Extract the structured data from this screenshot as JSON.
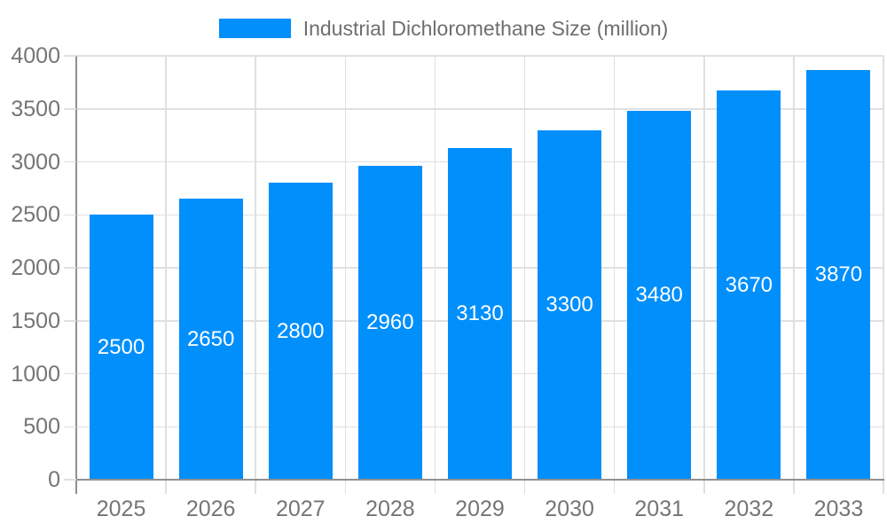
{
  "legend": {
    "label": "Industrial Dichloromethane Size (million)"
  },
  "chart_data": {
    "type": "bar",
    "title": "",
    "series_name": "Industrial Dichloromethane Size (million)",
    "categories": [
      "2025",
      "2026",
      "2027",
      "2028",
      "2029",
      "2030",
      "2031",
      "2032",
      "2033"
    ],
    "values": [
      2500,
      2650,
      2800,
      2960,
      3130,
      3300,
      3480,
      3670,
      3870
    ],
    "xlabel": "",
    "ylabel": "",
    "ylim": [
      0,
      4000
    ],
    "yticks": [
      0,
      500,
      1000,
      1500,
      2000,
      2500,
      3000,
      3500,
      4000
    ],
    "grid": true,
    "legend_position": "top",
    "value_label_position": "inside-center",
    "colors": {
      "bar": "#008ffb",
      "value_label": "#ffffff",
      "axis": "#909090",
      "grid": "#e0e0e0",
      "tick_label": "#757575",
      "legend_label": "#6e6e6e"
    }
  }
}
